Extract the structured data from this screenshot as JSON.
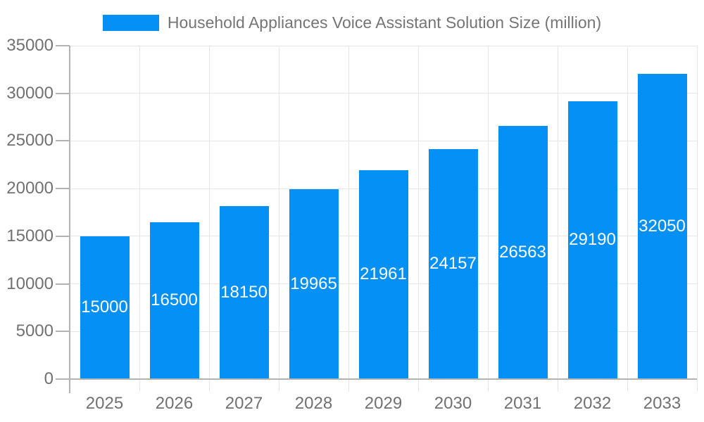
{
  "legend": {
    "label": "Household Appliances Voice Assistant Solution Size (million)"
  },
  "chart_data": {
    "type": "bar",
    "title": "Household Appliances Voice Assistant Solution Size (million)",
    "categories": [
      "2025",
      "2026",
      "2027",
      "2028",
      "2029",
      "2030",
      "2031",
      "2032",
      "2033"
    ],
    "values": [
      15000,
      16500,
      18150,
      19965,
      21961,
      24157,
      26563,
      29190,
      32050
    ],
    "xlabel": "",
    "ylabel": "",
    "ylim": [
      0,
      35000
    ],
    "yticks": [
      0,
      5000,
      10000,
      15000,
      20000,
      25000,
      30000,
      35000
    ],
    "grid": true,
    "legend_position": "top",
    "value_labels": "inside-center",
    "colors": {
      "bar": "#0590f5",
      "value_label": "#ffffff",
      "axis_text": "#717171",
      "legend_text": "#757575",
      "grid_line": "#e6e6e6",
      "axis_line": "#b3b3b3"
    }
  }
}
